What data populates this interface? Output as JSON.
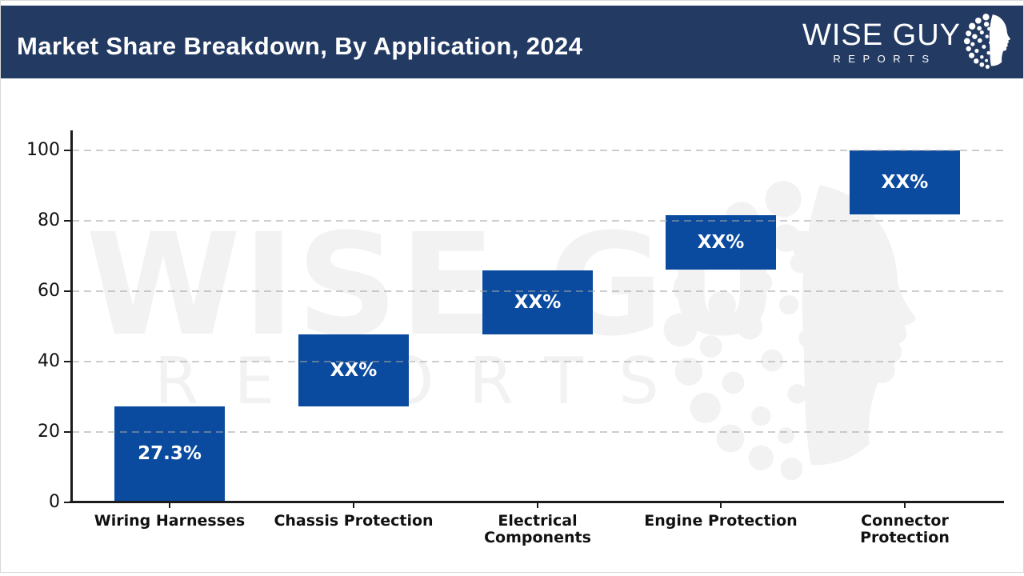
{
  "header": {
    "title": "Market Share Breakdown, By Application, 2024",
    "logo": {
      "wise_guy": "WISE GUY",
      "reports": "REPORTS"
    }
  },
  "watermark": {
    "wise_guy": "WISE GUY",
    "reports": "REPORTS"
  },
  "colors": {
    "header_navy": "#233a63",
    "bar_blue": "#0a4a9f",
    "bar_label_white": "#ffffff",
    "axis_dark": "#1c1c1c",
    "grid_gray": "#d9d9d9",
    "watermark_gray": "#f2f2f3"
  },
  "chart_data": {
    "type": "bar",
    "subtype": "waterfall-floating-bars",
    "title": "Market Share Breakdown, By Application, 2024",
    "xlabel": "",
    "ylabel": "",
    "categories": [
      "Wiring Harnesses",
      "Chassis Protection",
      "Electrical\nComponents",
      "Engine Protection",
      "Connector\nProtection"
    ],
    "segments": [
      {
        "category": "Wiring Harnesses",
        "label": "27.3%",
        "start": 0,
        "end": 27.3
      },
      {
        "category": "Chassis Protection",
        "label": "XX%",
        "start": 27.3,
        "end": 47.7
      },
      {
        "category": "Electrical Components",
        "label": "XX%",
        "start": 47.7,
        "end": 65.9
      },
      {
        "category": "Engine Protection",
        "label": "XX%",
        "start": 66.1,
        "end": 81.6
      },
      {
        "category": "Connector Protection",
        "label": "XX%",
        "start": 81.8,
        "end": 100
      }
    ],
    "yticks": [
      0,
      20,
      40,
      60,
      80,
      100
    ],
    "ylim": [
      0,
      105
    ],
    "grid": "dashed horizontal, drawn over bars",
    "legend": "none"
  }
}
